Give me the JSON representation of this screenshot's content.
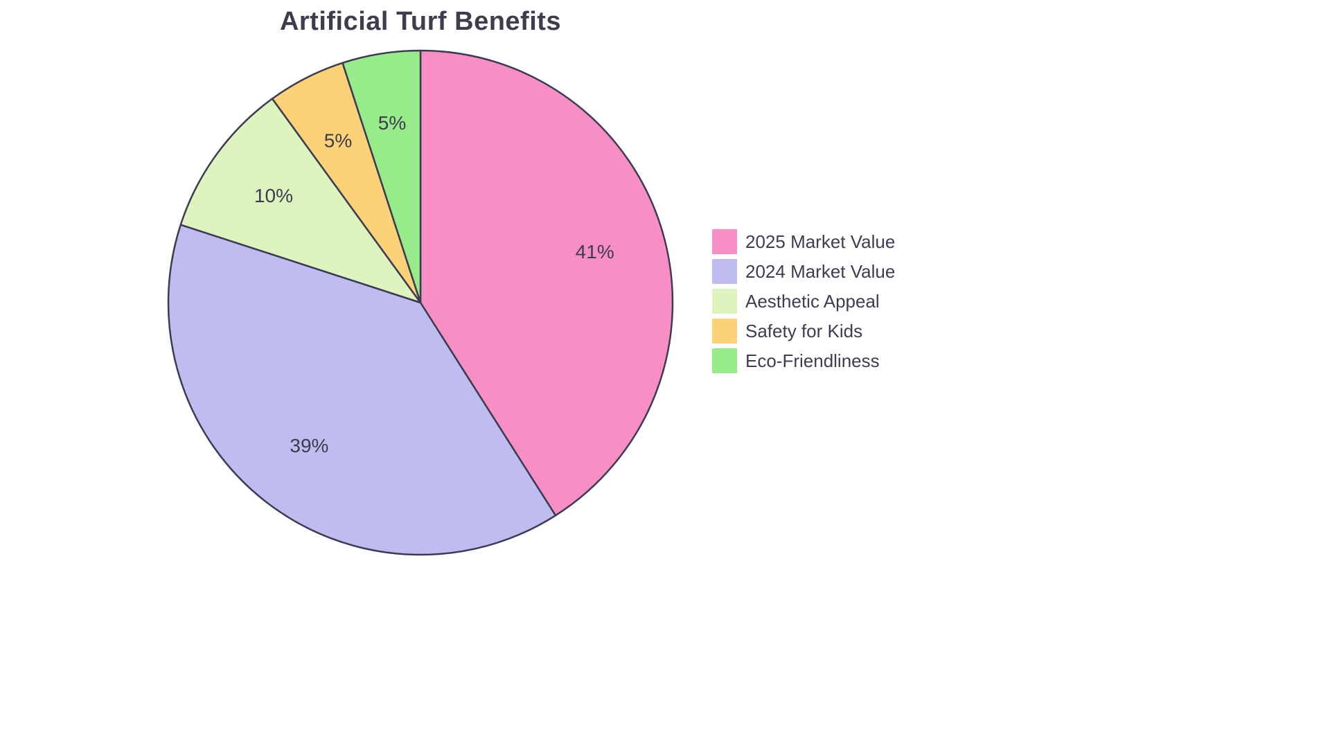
{
  "page": {
    "background": "#ffffff"
  },
  "chart_data": {
    "type": "pie",
    "title": "Artificial Turf Benefits",
    "start_angle_deg": 0,
    "direction": "clockwise",
    "legend_position": "right",
    "grid": false,
    "stroke_color": "#3b3b54",
    "label_color": "#3c3c4e",
    "slices": [
      {
        "label": "2025 Market Value",
        "value": 41,
        "display": "41%",
        "color": "#F78FC4"
      },
      {
        "label": "2024 Market Value",
        "value": 39,
        "display": "39%",
        "color": "#BFBCEF"
      },
      {
        "label": "Aesthetic Appeal",
        "value": 10,
        "display": "10%",
        "color": "#DDF4BF"
      },
      {
        "label": "Safety for Kids",
        "value": 5,
        "display": "5%",
        "color": "#FBD277"
      },
      {
        "label": "Eco-Friendliness",
        "value": 5,
        "display": "5%",
        "color": "#97EB89"
      }
    ]
  }
}
